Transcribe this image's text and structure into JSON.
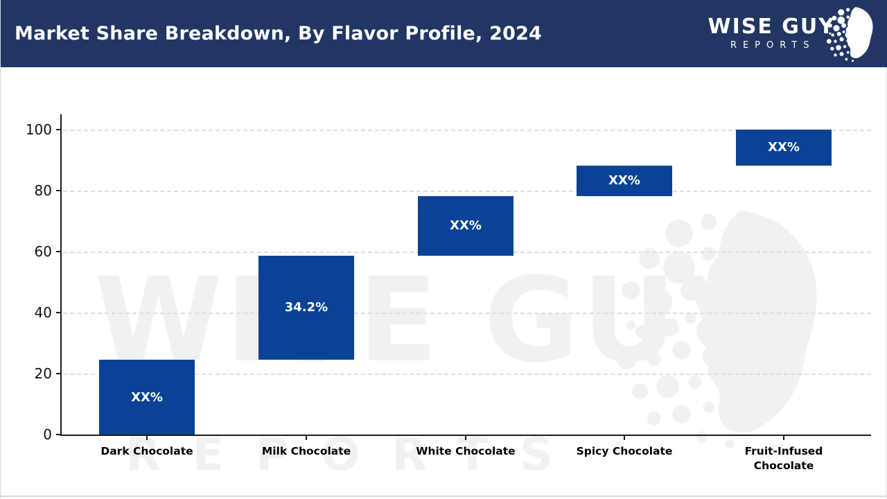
{
  "header": {
    "title": "Market Share Breakdown, By Flavor Profile, 2024",
    "background_color": "#213662",
    "logo": {
      "line1": "WISE GUY",
      "line2": "REPORTS"
    }
  },
  "watermark": {
    "line1": "WISE GUY",
    "line2": "REPORTS"
  },
  "chart_data": {
    "type": "bar",
    "subtype": "waterfall",
    "title": "Market Share Breakdown, By Flavor Profile, 2024",
    "xlabel": "",
    "ylabel": "",
    "categories": [
      "Dark Chocolate",
      "Milk Chocolate",
      "White Chocolate",
      "Spicy Chocolate",
      "Fruit-Infused\nChocolate"
    ],
    "bars": [
      {
        "category": "Dark Chocolate",
        "base": 0,
        "top": 24.5,
        "label": "XX%"
      },
      {
        "category": "Milk Chocolate",
        "base": 24.5,
        "top": 58.7,
        "label": "34.2%"
      },
      {
        "category": "White Chocolate",
        "base": 58.7,
        "top": 78.2,
        "label": "XX%"
      },
      {
        "category": "Spicy Chocolate",
        "base": 78.2,
        "top": 88.2,
        "label": "XX%"
      },
      {
        "category": "Fruit-Infused Chocolate",
        "base": 88.2,
        "top": 100,
        "label": "XX%"
      }
    ],
    "yticks": [
      0,
      20,
      40,
      60,
      80,
      100
    ],
    "ylim": [
      0,
      105
    ],
    "grid": "horizontal dashed",
    "legend_position": "none",
    "bar_color": "#0b4296",
    "bar_label_color": "#ffffff"
  }
}
